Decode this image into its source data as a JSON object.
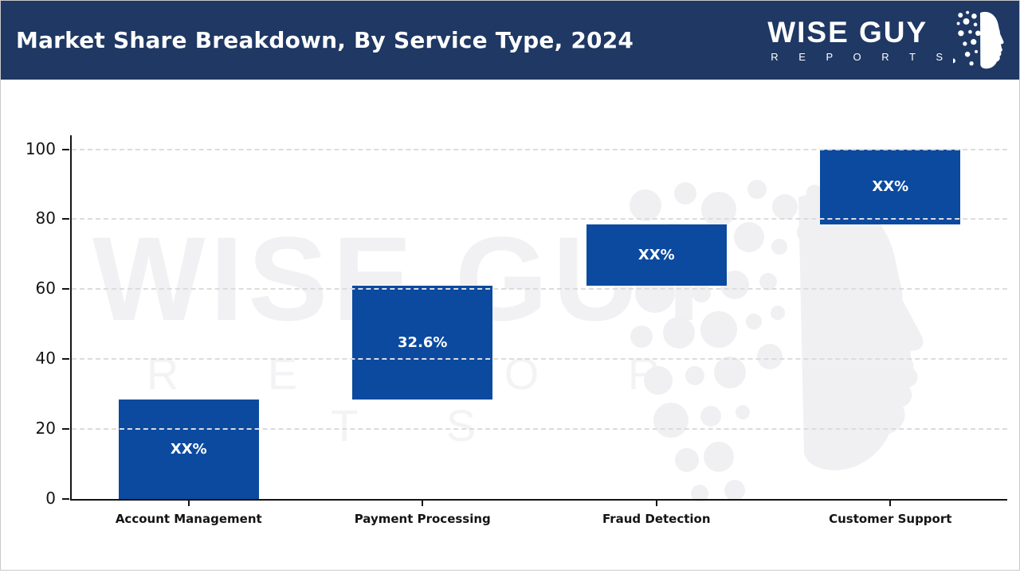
{
  "header": {
    "title": "Market Share Breakdown, By Service Type, 2024",
    "logo": {
      "name": "WISE GUY",
      "sub": "R E P O R T S"
    }
  },
  "watermark": {
    "line1": "WISE GUY",
    "line2": "R E P O R T S"
  },
  "chart_data": {
    "type": "bar",
    "subtype": "waterfall",
    "title": "Market Share Breakdown, By Service Type, 2024",
    "categories": [
      "Account Management",
      "Payment Processing",
      "Fraud Detection",
      "Customer Support"
    ],
    "bars": [
      {
        "category": "Account Management",
        "start": 0,
        "end": 28.5,
        "label": "XX%"
      },
      {
        "category": "Payment Processing",
        "start": 28.5,
        "end": 61.1,
        "label": "32.6%"
      },
      {
        "category": "Fraud Detection",
        "start": 61.1,
        "end": 78.5,
        "label": "XX%"
      },
      {
        "category": "Customer Support",
        "start": 78.5,
        "end": 100,
        "label": "XX%"
      }
    ],
    "yticks": [
      0,
      20,
      40,
      60,
      80,
      100
    ],
    "ylim": [
      0,
      104
    ],
    "grid": "horizontal-dashed",
    "legend": "none",
    "bar_color": "#0b4a9f",
    "axis_color": "#141414",
    "gridline_color": "#dcdcdc"
  },
  "colors": {
    "header_bg": "#1f3864",
    "bar": "#0b4a9f",
    "watermark": "#f1f1f3",
    "frame_border": "#c9c9c9"
  }
}
